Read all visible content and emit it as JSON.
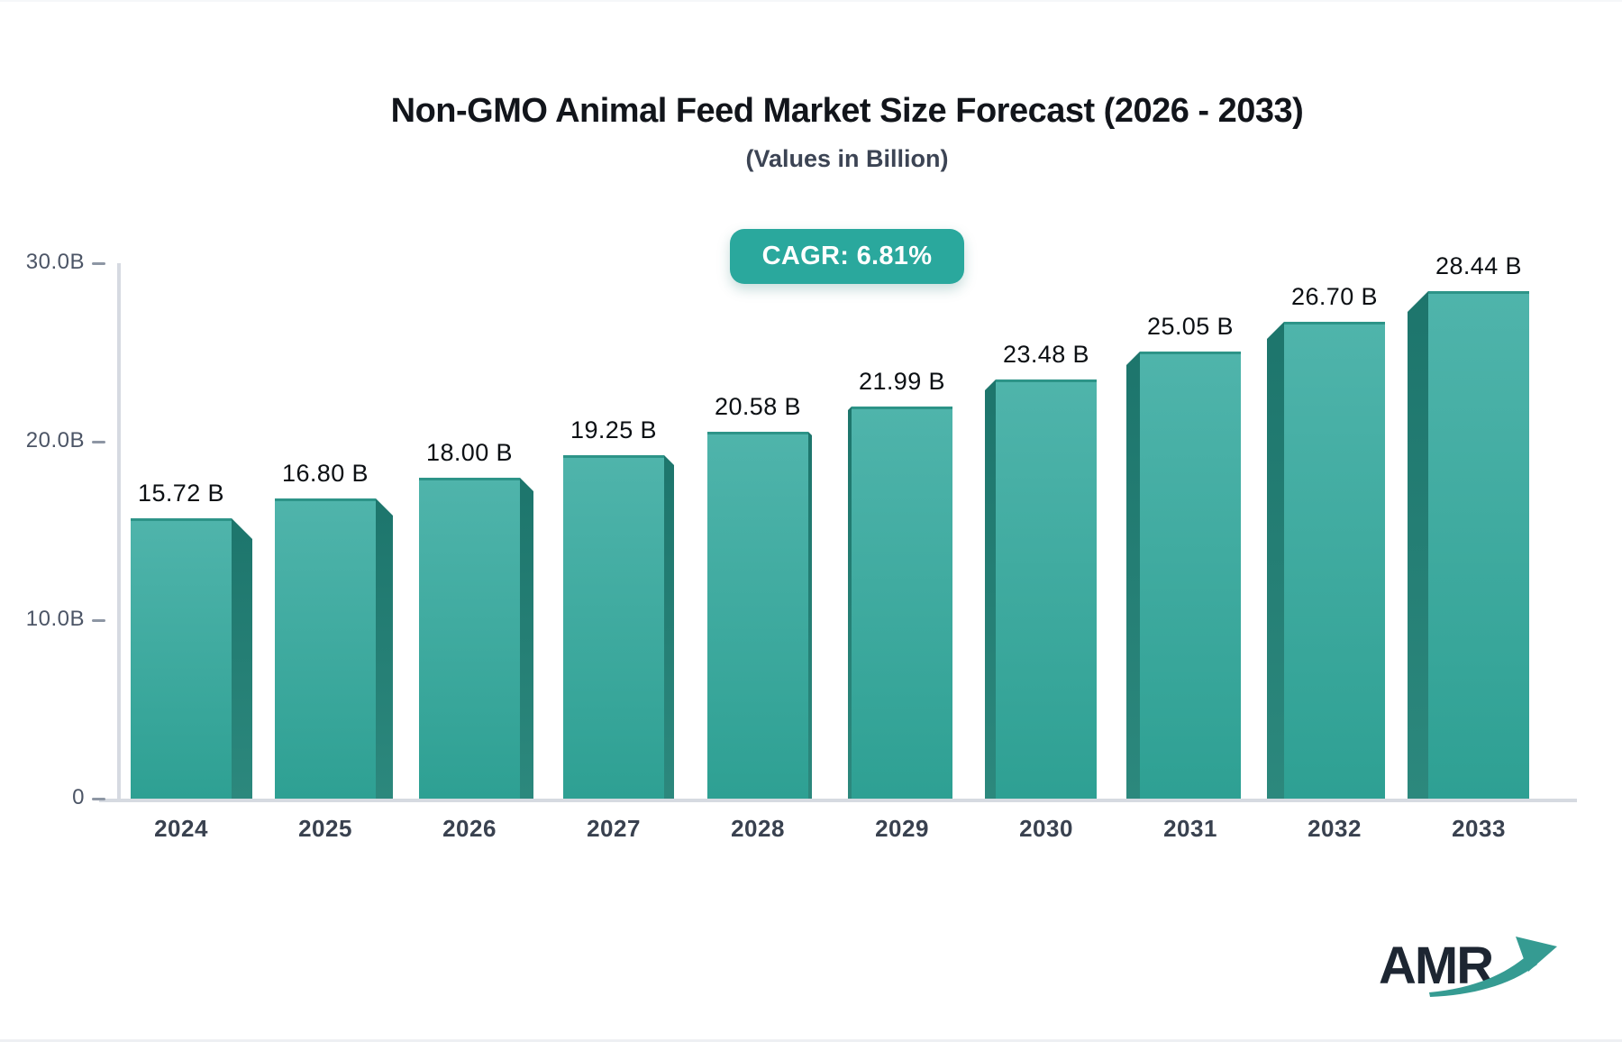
{
  "header": {
    "title": "Non-GMO Animal Feed Market Size Forecast (2026 - 2033)",
    "subtitle": "(Values in Billion)"
  },
  "badge": {
    "label": "CAGR: 6.81%"
  },
  "chart_data": {
    "type": "bar",
    "title": "Non-GMO Animal Feed Market Size Forecast (2026 - 2033)",
    "subtitle": "(Values in Billion)",
    "categories": [
      "2024",
      "2025",
      "2026",
      "2027",
      "2028",
      "2029",
      "2030",
      "2031",
      "2032",
      "2033"
    ],
    "values": [
      15.72,
      16.8,
      18.0,
      19.25,
      20.58,
      21.99,
      23.48,
      25.05,
      26.7,
      28.44
    ],
    "value_labels": [
      "15.72 B",
      "16.80 B",
      "18.00 B",
      "19.25 B",
      "20.58 B",
      "21.99 B",
      "23.48 B",
      "25.05 B",
      "26.70 B",
      "28.44 B"
    ],
    "xlabel": "",
    "ylabel": "",
    "ylim": [
      0,
      30
    ],
    "y_ticks": [
      {
        "value": 0,
        "label": "0"
      },
      {
        "value": 10,
        "label": "10.0B"
      },
      {
        "value": 20,
        "label": "20.0B"
      },
      {
        "value": 30,
        "label": "30.0B"
      }
    ],
    "grid": false,
    "legend": false,
    "bar_style": "3d-perspective"
  },
  "logo": {
    "text": "AMR"
  },
  "colors": {
    "accent": "#2aa89d",
    "bar_top": "#4fb4ab",
    "bar_bottom": "#2ea093",
    "side_top": "#1d756c",
    "side_bottom": "#2c887d",
    "bar_edge": "#2d9488",
    "axis": "#d6dae1",
    "tick": "#8d96a4",
    "ylab": "#4c5566",
    "xlab": "#39414f",
    "vlab": "#0c1014",
    "title": "#12151b",
    "subtitle": "#3c4454",
    "logo_text": "#1d2632",
    "logo_arrow": "#359b92"
  }
}
